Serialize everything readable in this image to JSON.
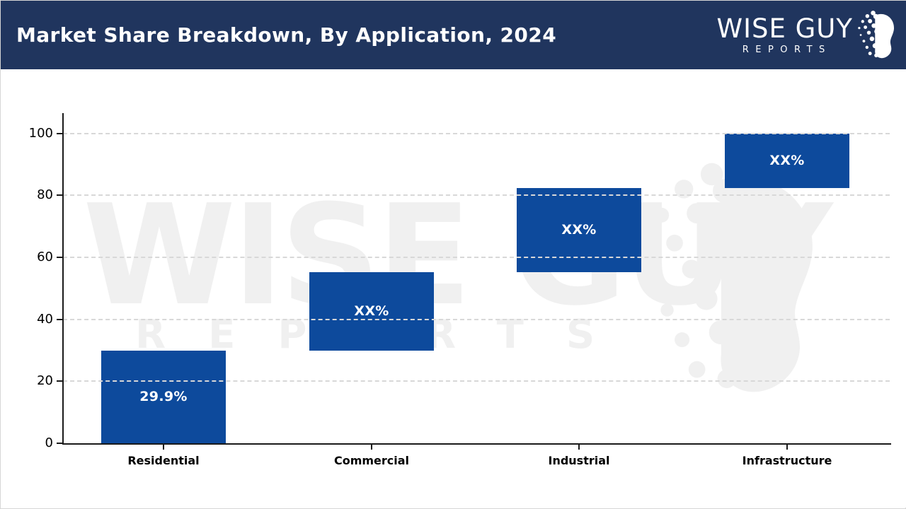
{
  "header": {
    "title": "Market Share Breakdown, By Application, 2024",
    "logo": {
      "name": "WISE GUY",
      "subtext": "REPORTS"
    }
  },
  "watermark": {
    "name": "WISE GUY",
    "subtext": "REPORTS"
  },
  "colors": {
    "header_bg": "#20355E",
    "bar": "#0D4A9C",
    "axis": "#1A1A1A",
    "grid": "#D8D8D8",
    "watermark": "#F0F0F0",
    "title_text": "#FFFFFF",
    "tick_text": "#000000",
    "bar_label_text": "#FFFFFF",
    "border": "#D6D6D6"
  },
  "chart_data": {
    "type": "bar",
    "subtype": "waterfall",
    "title": "Market Share Breakdown, By Application, 2024",
    "categories": [
      "Residential",
      "Commercial",
      "Industrial",
      "Infrastructure"
    ],
    "segments": [
      {
        "category": "Residential",
        "start": 0,
        "end": 29.9,
        "label": "29.9%"
      },
      {
        "category": "Commercial",
        "start": 29.9,
        "end": 55.3,
        "label": "XX%"
      },
      {
        "category": "Industrial",
        "start": 55.3,
        "end": 82.4,
        "label": "XX%"
      },
      {
        "category": "Infrastructure",
        "start": 82.4,
        "end": 100,
        "label": "XX%"
      }
    ],
    "xlabel": "",
    "ylabel": "",
    "ylim": [
      0,
      107
    ],
    "yticks": [
      0,
      20,
      40,
      60,
      80,
      100
    ],
    "grid": "horizontal-dashed",
    "legend_position": "none",
    "bar_label_style": "inside-center-white-bold"
  }
}
